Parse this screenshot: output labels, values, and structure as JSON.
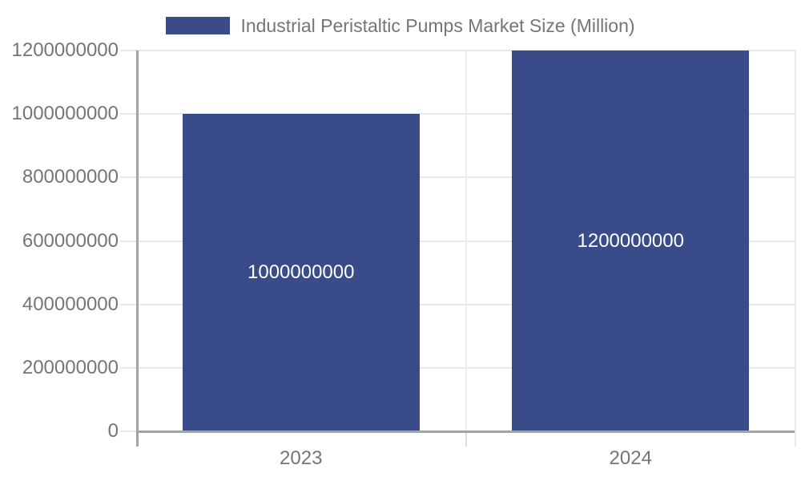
{
  "chart_data": {
    "type": "bar",
    "title": "Industrial Peristaltic Pumps Market Size (Million)",
    "categories": [
      "2023",
      "2024"
    ],
    "series": [
      {
        "name": "Industrial Peristaltic Pumps Market Size (Million)",
        "values": [
          1000000000,
          1200000000
        ]
      }
    ],
    "values": [
      1000000000,
      1200000000
    ],
    "value_labels": [
      "1000000000",
      "1200000000"
    ],
    "ylim": [
      0,
      1200000000
    ],
    "yticks": [
      0,
      200000000,
      400000000,
      600000000,
      800000000,
      1000000000,
      1200000000
    ],
    "ytick_labels": [
      "0",
      "200000000",
      "400000000",
      "600000000",
      "800000000",
      "1000000000",
      "1200000000"
    ],
    "xlabel": "",
    "ylabel": "",
    "grid": true,
    "legend_position": "top",
    "colors": {
      "bar": "#3A4B8A",
      "value_label": "#FFFFFF",
      "axis_label": "#757575",
      "legend_text": "#757575",
      "gridline": "#E8E8E8",
      "split_line": "#ECECEC",
      "axis_line": "#A3A3A3",
      "mid_tick": "#DDDDDD",
      "background": "#FFFFFF"
    }
  }
}
